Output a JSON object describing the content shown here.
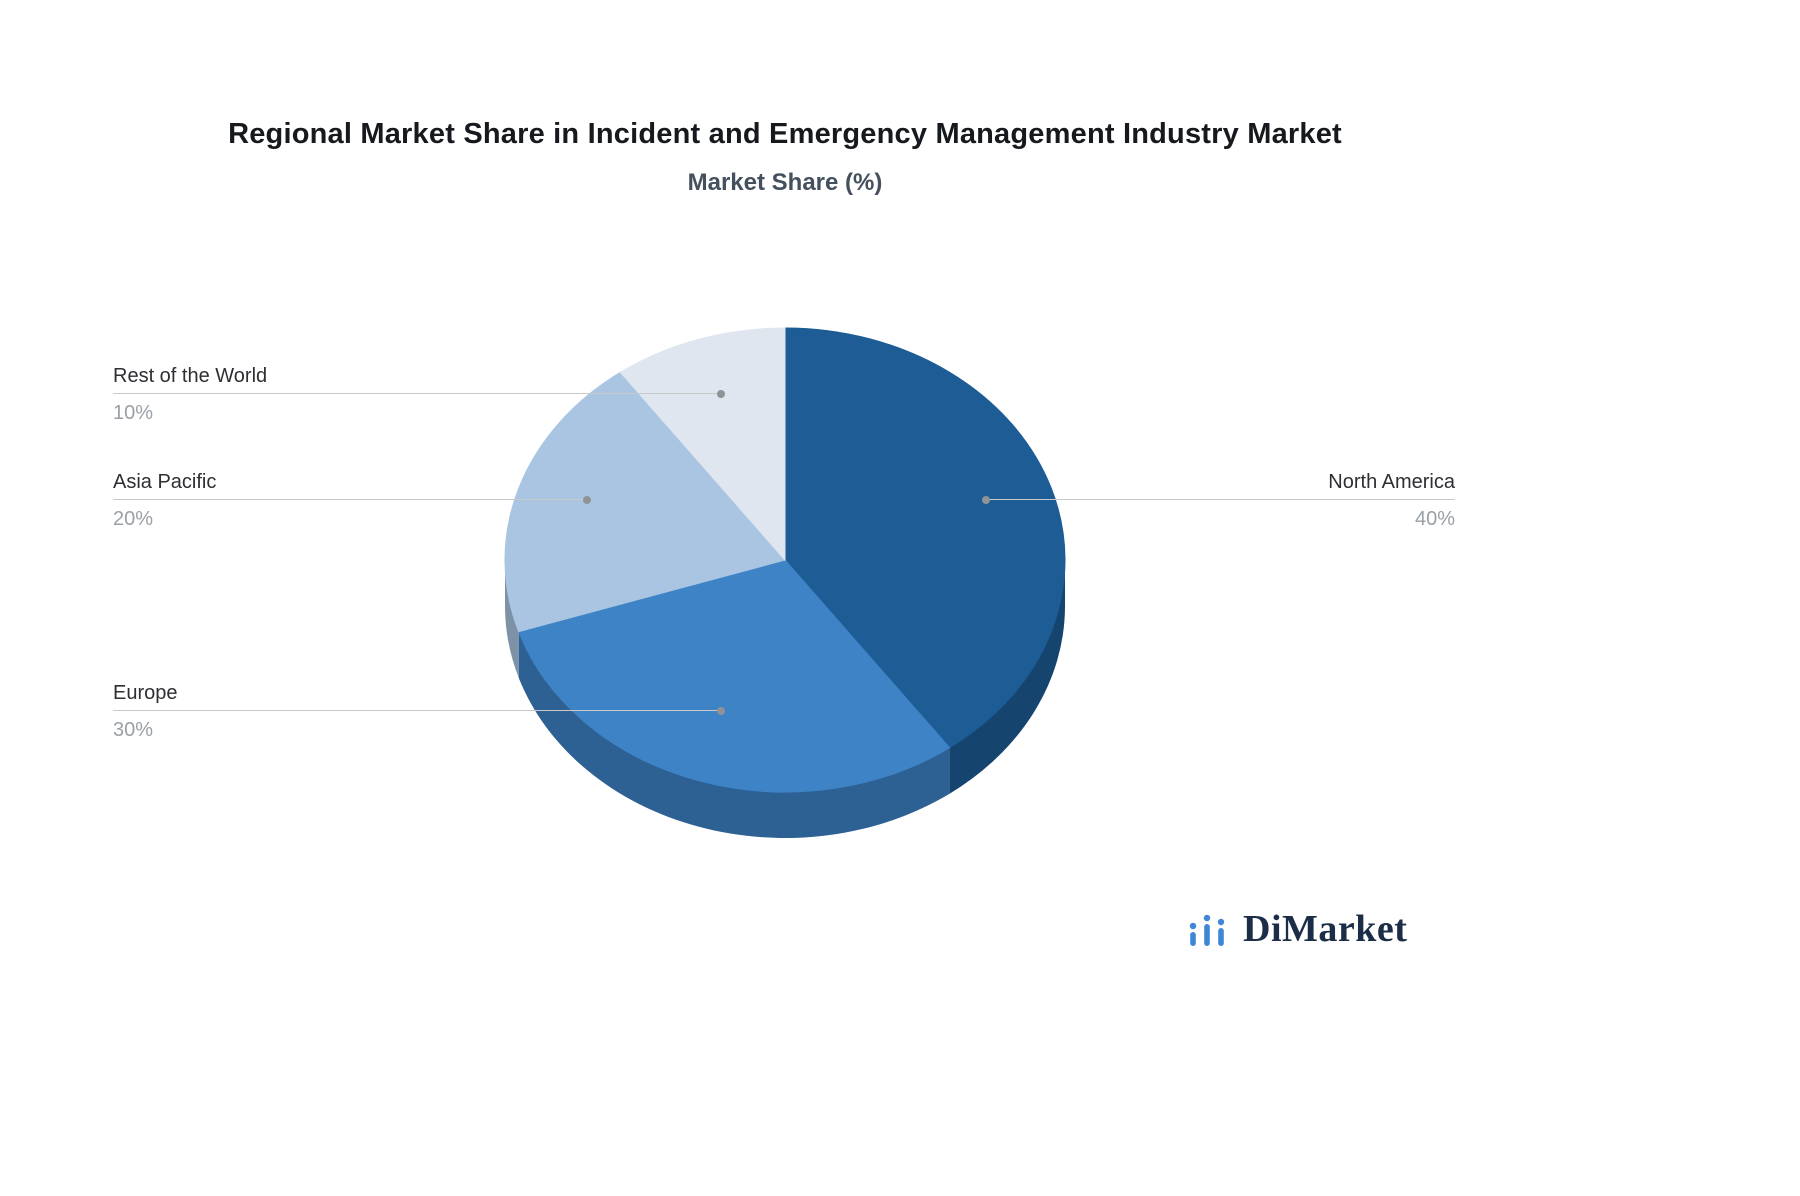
{
  "chart_data": {
    "type": "pie",
    "title": "Regional Market Share in Incident and Emergency Management Industry Market",
    "subtitle": "Market Share (%)",
    "unit": "%",
    "style": "3d-pie",
    "start_angle_deg": 0,
    "direction": "clockwise",
    "legend_position": "none",
    "slices": [
      {
        "label": "North America",
        "value": 40,
        "pct_label": "40%",
        "color": "#1d5c94"
      },
      {
        "label": "Europe",
        "value": 30,
        "pct_label": "30%",
        "color": "#3e83c6"
      },
      {
        "label": "Asia Pacific",
        "value": 20,
        "pct_label": "20%",
        "color": "#a9c5e2"
      },
      {
        "label": "Rest of the World",
        "value": 10,
        "pct_label": "10%",
        "color": "#dfe6f0"
      }
    ]
  },
  "logo": {
    "text": "DiMarket",
    "icon": "bar-chart-icon",
    "icon_color": "#3f87d6",
    "text_color": "#1b2d47"
  }
}
